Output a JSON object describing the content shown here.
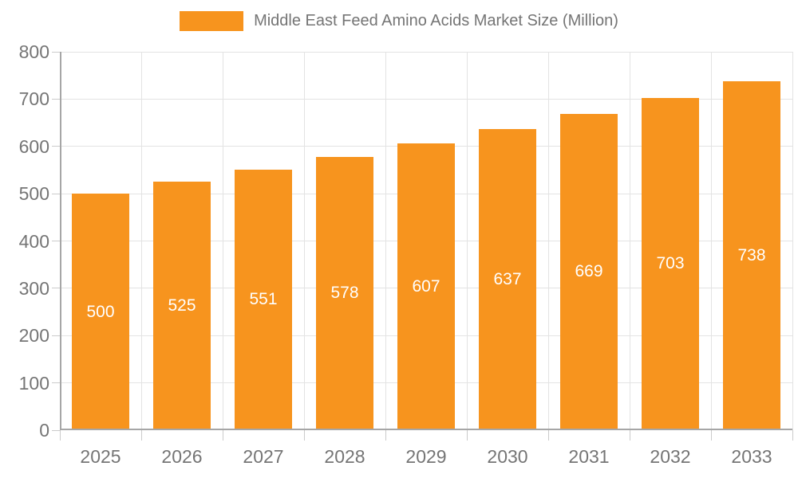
{
  "colors": {
    "bar": "#F7941E",
    "axis_line": "#a6a6a6",
    "grid_line": "#e3e3e3",
    "tick_mark": "#cbcbcb",
    "axis_text": "#757575",
    "legend_text": "#757575",
    "value_label_text": "#ffffff",
    "background": "#ffffff"
  },
  "chart_data": {
    "type": "bar",
    "title": "Middle East Feed Amino Acids Market Size (Million)",
    "categories": [
      "2025",
      "2026",
      "2027",
      "2028",
      "2029",
      "2030",
      "2031",
      "2032",
      "2033"
    ],
    "values": [
      500,
      525,
      551,
      578,
      607,
      637,
      669,
      703,
      738
    ],
    "xlabel": "",
    "ylabel": "",
    "ylim": [
      0,
      800
    ],
    "ytick_step": 100,
    "ytick_labels": [
      "0",
      "100",
      "200",
      "300",
      "400",
      "500",
      "600",
      "700",
      "800"
    ],
    "grid": true,
    "legend_position": "top",
    "value_labels": "inside-center"
  }
}
